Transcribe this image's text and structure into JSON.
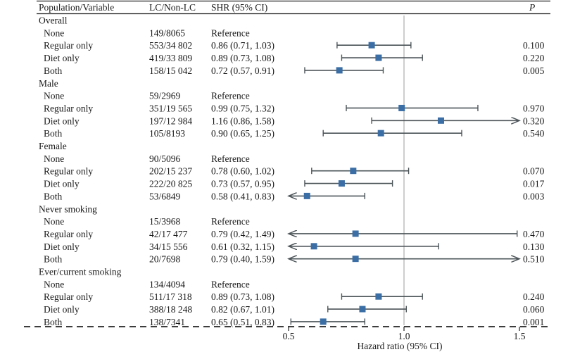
{
  "chart_data": {
    "type": "forest",
    "title": "",
    "headers": {
      "variable": "Population/Variable",
      "counts": "LC/Non-LC",
      "shr": "SHR (95% CI)",
      "p": "P"
    },
    "xlabel": "Hazard ratio (95% CI)",
    "xlim": [
      0.5,
      1.5
    ],
    "xticks": [
      "0.5",
      "1.0",
      "1.5"
    ],
    "reference_line": 1.0,
    "colors": {
      "marker": "#3b6ea5",
      "line": "#4d5559",
      "refline": "#b8b8b8"
    },
    "groups": [
      {
        "name": "Overall",
        "rows": [
          {
            "label": "None",
            "counts": "149/8065",
            "shr": "Reference",
            "p": ""
          },
          {
            "label": "Regular only",
            "counts": "553/34 802",
            "shr": "0.86 (0.71, 1.03)",
            "p": "0.100",
            "hr": 0.86,
            "lo": 0.71,
            "hi": 1.03
          },
          {
            "label": "Diet only",
            "counts": "419/33 809",
            "shr": "0.89 (0.73, 1.08)",
            "p": "0.220",
            "hr": 0.89,
            "lo": 0.73,
            "hi": 1.08
          },
          {
            "label": "Both",
            "counts": "158/15 042",
            "shr": "0.72 (0.57, 0.91)",
            "p": "0.005",
            "hr": 0.72,
            "lo": 0.57,
            "hi": 0.91
          }
        ]
      },
      {
        "name": "Male",
        "rows": [
          {
            "label": "None",
            "counts": "59/2969",
            "shr": "Reference",
            "p": ""
          },
          {
            "label": "Regular only",
            "counts": "351/19 565",
            "shr": "0.99 (0.75, 1.32)",
            "p": "0.970",
            "hr": 0.99,
            "lo": 0.75,
            "hi": 1.32
          },
          {
            "label": "Diet only",
            "counts": "197/12 984",
            "shr": "1.16 (0.86, 1.58)",
            "p": "0.320",
            "hr": 1.16,
            "lo": 0.86,
            "hi": 1.58
          },
          {
            "label": "Both",
            "counts": "105/8193",
            "shr": "0.90 (0.65, 1.25)",
            "p": "0.540",
            "hr": 0.9,
            "lo": 0.65,
            "hi": 1.25
          }
        ]
      },
      {
        "name": "Female",
        "rows": [
          {
            "label": "None",
            "counts": "90/5096",
            "shr": "Reference",
            "p": ""
          },
          {
            "label": "Regular only",
            "counts": "202/15 237",
            "shr": "0.78 (0.60, 1.02)",
            "p": "0.070",
            "hr": 0.78,
            "lo": 0.6,
            "hi": 1.02
          },
          {
            "label": "Diet only",
            "counts": "222/20 825",
            "shr": "0.73 (0.57, 0.95)",
            "p": "0.017",
            "hr": 0.73,
            "lo": 0.57,
            "hi": 0.95
          },
          {
            "label": "Both",
            "counts": "53/6849",
            "shr": "0.58 (0.41, 0.83)",
            "p": "0.003",
            "hr": 0.58,
            "lo": 0.41,
            "hi": 0.83
          }
        ]
      },
      {
        "name": "Never smoking",
        "rows": [
          {
            "label": "None",
            "counts": "15/3968",
            "shr": "Reference",
            "p": ""
          },
          {
            "label": "Regular only",
            "counts": "42/17 477",
            "shr": "0.79 (0.42, 1.49)",
            "p": "0.470",
            "hr": 0.79,
            "lo": 0.42,
            "hi": 1.49
          },
          {
            "label": "Diet only",
            "counts": "34/15 556",
            "shr": "0.61 (0.32, 1.15)",
            "p": "0.130",
            "hr": 0.61,
            "lo": 0.32,
            "hi": 1.15
          },
          {
            "label": "Both",
            "counts": "20/7698",
            "shr": "0.79 (0.40, 1.59)",
            "p": "0.510",
            "hr": 0.79,
            "lo": 0.4,
            "hi": 1.59
          }
        ]
      },
      {
        "name": "Ever/current smoking",
        "rows": [
          {
            "label": "None",
            "counts": "134/4094",
            "shr": "Reference",
            "p": ""
          },
          {
            "label": "Regular only",
            "counts": "511/17 318",
            "shr": "0.89 (0.73, 1.08)",
            "p": "0.240",
            "hr": 0.89,
            "lo": 0.73,
            "hi": 1.08
          },
          {
            "label": "Diet only",
            "counts": "388/18 248",
            "shr": "0.82 (0.67, 1.01)",
            "p": "0.060",
            "hr": 0.82,
            "lo": 0.67,
            "hi": 1.01
          },
          {
            "label": "Both",
            "counts": "138/7341",
            "shr": "0.65 (0.51, 0.83)",
            "p": "0.001",
            "hr": 0.65,
            "lo": 0.51,
            "hi": 0.83
          }
        ]
      }
    ]
  }
}
